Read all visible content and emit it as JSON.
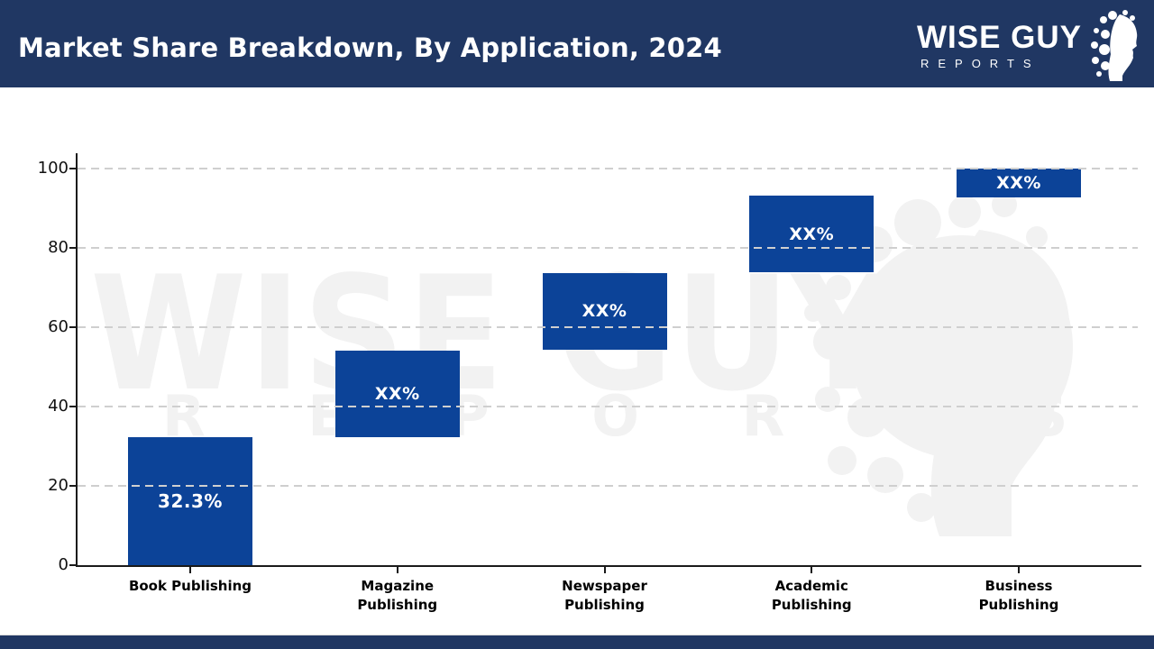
{
  "header": {
    "title": "Market Share Breakdown, By Application, 2024",
    "logo": {
      "line1": "WISE GUY",
      "line2": "REPORTS"
    }
  },
  "watermark": {
    "line1": "WISE GUY",
    "line2": "REPORTS"
  },
  "colors": {
    "header_navy": "#203763",
    "footer_navy": "#203763",
    "bar_blue": "#0c4398",
    "gridline_gray": "#cfcfcf",
    "watermark_gray": "#f2f2f2",
    "axis_black": "#1a1a1a",
    "label_white": "#ffffff"
  },
  "chart_data": {
    "type": "bar",
    "subtype": "floating-segment-waterfall",
    "title": "Market Share Breakdown, By Application, 2024",
    "xlabel": "",
    "ylabel": "",
    "ylim": [
      0,
      104
    ],
    "yticks": [
      0,
      20,
      40,
      60,
      80,
      100
    ],
    "grid": "horizontal-dashed-over-bars",
    "legend": "none",
    "categories": [
      "Book Publishing",
      "Magazine Publishing",
      "Newspaper Publishing",
      "Academic Publishing",
      "Business Publishing"
    ],
    "category_label_lines": [
      [
        "Book Publishing"
      ],
      [
        "Magazine",
        "Publishing"
      ],
      [
        "Newspaper",
        "Publishing"
      ],
      [
        "Academic",
        "Publishing"
      ],
      [
        "Business",
        "Publishing"
      ]
    ],
    "segments": [
      {
        "category": "Book Publishing",
        "start": 0,
        "end": 32.3,
        "label": "32.3%"
      },
      {
        "category": "Magazine Publishing",
        "start": 32.3,
        "end": 54.1,
        "label": "XX%"
      },
      {
        "category": "Newspaper Publishing",
        "start": 54.4,
        "end": 73.7,
        "label": "XX%"
      },
      {
        "category": "Academic Publishing",
        "start": 73.9,
        "end": 93.1,
        "label": "XX%"
      },
      {
        "category": "Business Publishing",
        "start": 92.8,
        "end": 100.0,
        "label": "XX%"
      }
    ]
  }
}
